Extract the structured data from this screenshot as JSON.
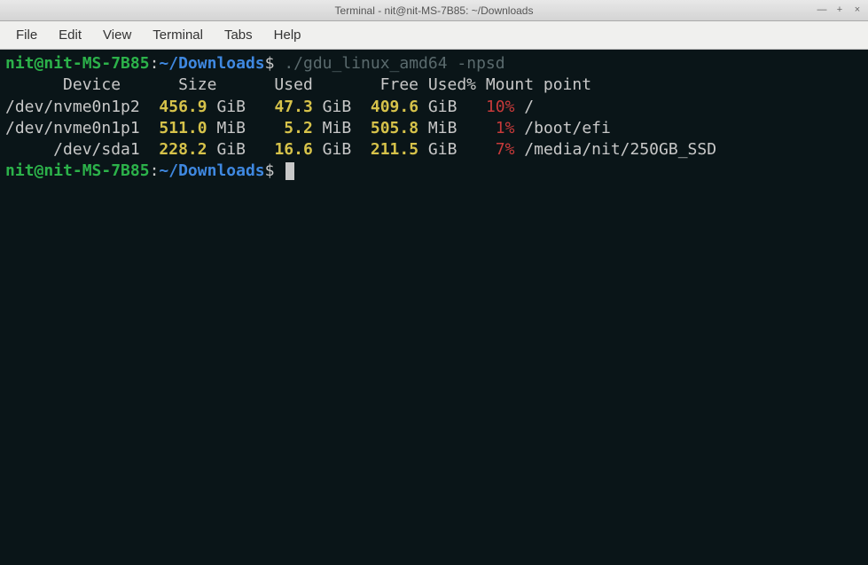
{
  "window": {
    "title": "Terminal - nit@nit-MS-7B85: ~/Downloads"
  },
  "menubar": {
    "items": [
      "File",
      "Edit",
      "View",
      "Terminal",
      "Tabs",
      "Help"
    ]
  },
  "prompt": {
    "user": "nit",
    "at": "@",
    "host": "nit-MS-7B85",
    "colon": ":",
    "path": "~/Downloads",
    "symbol": "$"
  },
  "command": "./gdu_linux_amd64 -npsd",
  "table": {
    "header": "      Device      Size      Used       Free Used% Mount point",
    "rows": [
      {
        "device": "/dev/nvme0n1p2",
        "size": "456.9",
        "size_unit": "GiB",
        "used": "47.3",
        "used_unit": "GiB",
        "free": "409.6",
        "free_unit": "GiB",
        "pct": "10%",
        "mount": "/"
      },
      {
        "device": "/dev/nvme0n1p1",
        "size": "511.0",
        "size_unit": "MiB",
        "used": "5.2",
        "used_unit": "MiB",
        "free": "505.8",
        "free_unit": "MiB",
        "pct": "1%",
        "mount": "/boot/efi"
      },
      {
        "device": "/dev/sda1",
        "size": "228.2",
        "size_unit": "GiB",
        "used": "16.6",
        "used_unit": "GiB",
        "free": "211.5",
        "free_unit": "GiB",
        "pct": "7%",
        "mount": "/media/nit/250GB_SSD"
      }
    ]
  },
  "colors": {
    "bg": "#0a1518",
    "fg": "#c8c8c8",
    "green": "#2cb24a",
    "blue": "#3f88e0",
    "yellow": "#d6c24a",
    "red": "#c83a3a",
    "dim": "#5a6a6d"
  },
  "layout": {
    "device_width": 14,
    "size_width": 6,
    "unit_width": 3,
    "used_width": 6,
    "free_width": 6,
    "pct_width": 5
  }
}
